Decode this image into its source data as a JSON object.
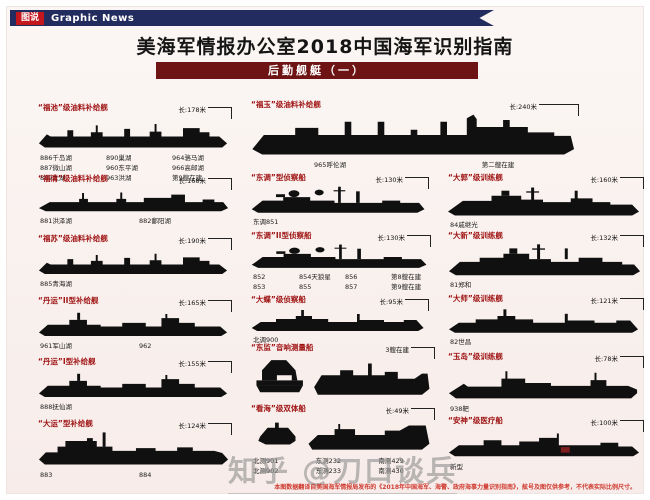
{
  "badge": {
    "tag": "图说",
    "name": "Graphic News"
  },
  "title": "美海军情报办公室2018中国海军识别指南",
  "section_banner": "后勤舰艇（一）",
  "watermark": "知乎 @刀口谈兵",
  "footnote": "本图数据翻译自美国海军情报局发布的《2018年中国海军、海警、政府海事力量识别指南》，舷号及图仅供参考，不代表实际比例尺寸。",
  "colors": {
    "ribbon_navy": "#232c5e",
    "badge_red": "#c4161d",
    "section_maroon": "#6e1414",
    "class_title_red": "#9e1212",
    "silhouette_black": "#101010",
    "footnote_red": "#cf3a30"
  },
  "ships": [
    {
      "id": "fuchi",
      "title": "“福池”级油料补给舰",
      "length_label": "长:178米",
      "silhouette": "oiler",
      "hull_rows": [
        [
          "886千岛湖",
          "890巢湖",
          "964骆马湖"
        ],
        [
          "887微山湖",
          "960东平湖",
          "966高邮湖"
        ],
        [
          "889太湖",
          "963洪湖",
          "第9艘在建"
        ]
      ]
    },
    {
      "id": "fuqing",
      "title": "“福清”级油料补给舰",
      "length_label": "长:168米",
      "silhouette": "freighter",
      "hull_rows": [
        [
          "881洪泽湖",
          "882鄱阳湖"
        ]
      ]
    },
    {
      "id": "fusu",
      "title": "“福苏”级油料补给舰",
      "length_label": "长:190米",
      "silhouette": "oiler",
      "hull_rows": [
        [
          "885青海湖"
        ]
      ]
    },
    {
      "id": "danyun2",
      "title": "“丹运”II型补给舰",
      "length_label": "长:165米",
      "silhouette": "replenish",
      "hull_rows": [
        [
          "961军山湖",
          "962"
        ]
      ]
    },
    {
      "id": "danyun1",
      "title": "“丹运”I型补给舰",
      "length_label": "长:155米",
      "silhouette": "replenish",
      "hull_rows": [
        [
          "888抚仙湖"
        ]
      ]
    },
    {
      "id": "dayun",
      "title": "“大运”型补给舰",
      "length_label": "长:124米",
      "silhouette": "supply",
      "hull_rows": [
        [
          "883",
          "884"
        ]
      ]
    },
    {
      "id": "fuyu",
      "title": "“福玉”级油料补给舰",
      "length_label": "长:240米",
      "silhouette": "bigship",
      "hull_rows": [
        [
          "965呼伦湖",
          "第二艘在建"
        ]
      ]
    },
    {
      "id": "dongdiao",
      "title": "“东调”型侦察船",
      "length_label": "长:130米",
      "silhouette": "spy",
      "hull_rows": [
        [
          "东调851"
        ]
      ]
    },
    {
      "id": "dongdiao2",
      "title": "“东调”II型侦察船",
      "length_label": "长:130米",
      "silhouette": "spy",
      "hull_rows": [
        [
          "852",
          "854天狼星",
          "856",
          "第8艘在建"
        ],
        [
          "853",
          "855",
          "857",
          "第9艘在建"
        ]
      ]
    },
    {
      "id": "dadie",
      "title": "“大蝶”级侦察船",
      "length_label": "长:95米",
      "silhouette": "survey",
      "hull_rows": [
        [
          "北调900"
        ]
      ]
    },
    {
      "id": "dongjian",
      "title": "“东监”音响测量船",
      "length_label": "3艘在建",
      "silhouette": "swath",
      "hull_rows": []
    },
    {
      "id": "kanhai",
      "title": "“看海”级双体船",
      "length_label": "长:49米",
      "silhouette": "catamaran",
      "hull_rows": [
        [
          "北测901",
          "东测232",
          "南测429"
        ],
        [
          "北测902",
          "东测233",
          "南测430"
        ]
      ]
    },
    {
      "id": "daguo",
      "title": "“大郭”级训练舰",
      "length_label": "长:160米",
      "silhouette": "warship",
      "hull_rows": [
        [
          "84戚继光"
        ]
      ]
    },
    {
      "id": "daxin",
      "title": "“大新”级训练舰",
      "length_label": "长:132米",
      "silhouette": "warship2",
      "hull_rows": [
        [
          "81郑和"
        ]
      ]
    },
    {
      "id": "dashi",
      "title": "“大师”级训练舰",
      "length_label": "长:121米",
      "silhouette": "survey",
      "hull_rows": [
        [
          "82世昌"
        ]
      ]
    },
    {
      "id": "yudao",
      "title": "“玉岛”级训练舰",
      "length_label": "长:78米",
      "silhouette": "landing",
      "hull_rows": [
        [
          "938靶"
        ]
      ]
    },
    {
      "id": "anshen",
      "title": "“安神”级医疗船",
      "length_label": "长:100米",
      "silhouette": "hospital",
      "hull_rows": [
        [
          "新型"
        ]
      ]
    }
  ]
}
